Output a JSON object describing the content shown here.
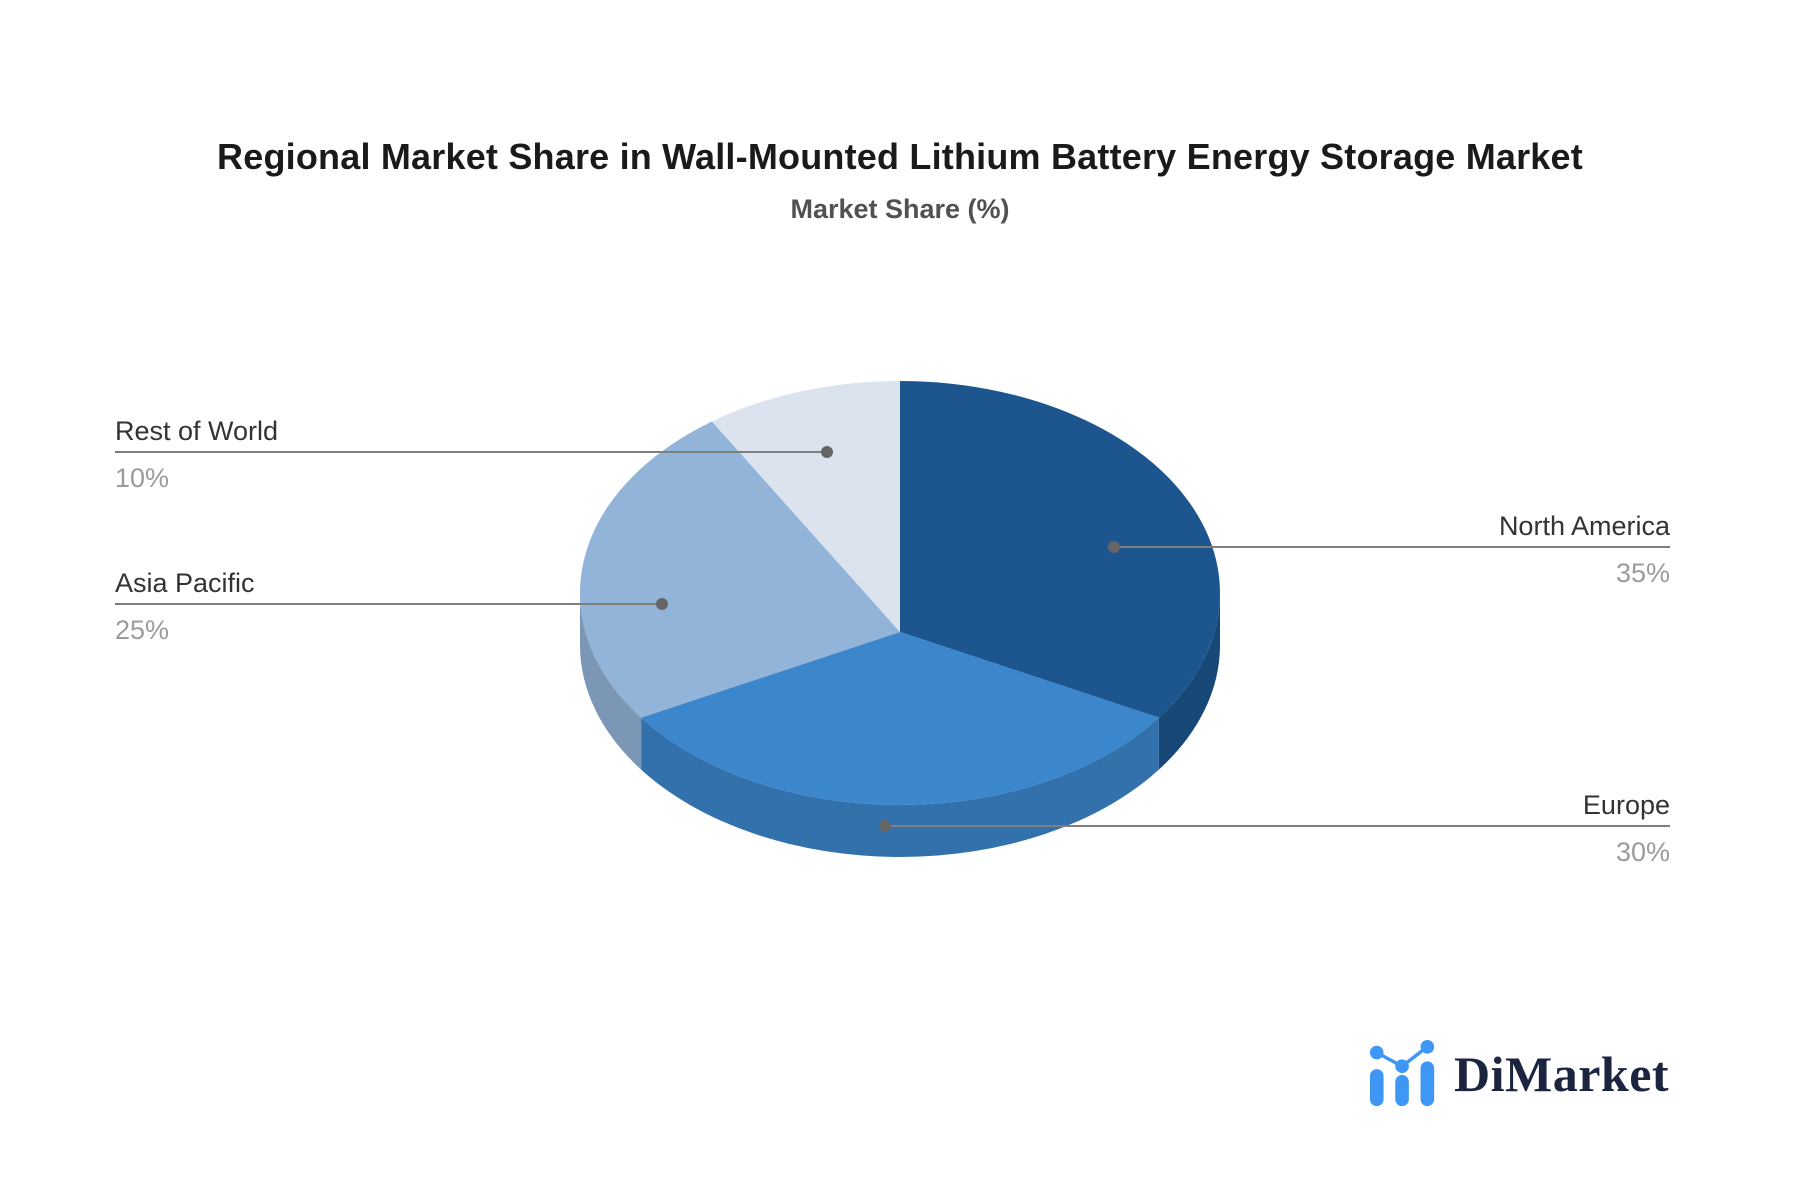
{
  "title": "Regional Market Share in Wall-Mounted Lithium Battery Energy Storage Market",
  "subtitle": "Market Share (%)",
  "logo": {
    "text": "DiMarket",
    "icon": "bar-line-chart-icon",
    "icon_color": "#3e97f4",
    "text_color": "#1c2540"
  },
  "style_colors": {
    "leader_line": "#7f7f7f",
    "leader_dot": "#666666",
    "label_name": "#333333",
    "label_percent": "#9b9b9b",
    "title": "#1a1a1a",
    "subtitle": "#515151",
    "background": "#ffffff"
  },
  "chart_data": {
    "type": "pie",
    "style": "3d",
    "title": "Regional Market Share in Wall-Mounted Lithium Battery Energy Storage Market",
    "subtitle": "Market Share (%)",
    "categories": [
      "North America",
      "Europe",
      "Asia Pacific",
      "Rest of World"
    ],
    "values": [
      35,
      30,
      25,
      10
    ],
    "value_labels": [
      "35%",
      "30%",
      "25%",
      "10%"
    ],
    "unit": "%",
    "colors": [
      "#1d568f",
      "#3c87cc",
      "#92b4d8",
      "#dbe3ef"
    ],
    "start_angle_deg": 0,
    "direction": "clockwise",
    "legend": "leader-line labels, names dark gray above line, percents light gray below line"
  }
}
